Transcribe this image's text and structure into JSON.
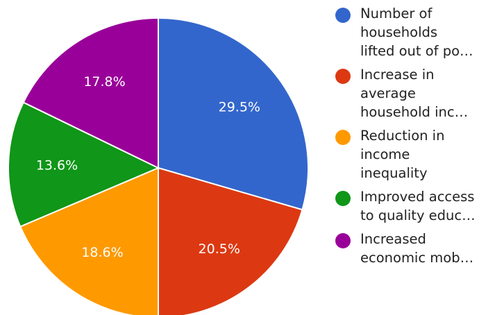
{
  "chart_data": {
    "type": "pie",
    "slices": [
      {
        "label": "Number of households lifted out of poverty",
        "value": 29.5,
        "display": "29.5%",
        "color": "#3366cc"
      },
      {
        "label": "Increase in average household income",
        "value": 20.5,
        "display": "20.5%",
        "color": "#dc3912"
      },
      {
        "label": "Reduction in income inequality",
        "value": 18.6,
        "display": "18.6%",
        "color": "#ff9900"
      },
      {
        "label": "Improved access to quality education",
        "value": 13.6,
        "display": "13.6%",
        "color": "#109618"
      },
      {
        "label": "Increased economic mobility",
        "value": 17.8,
        "display": "17.8%",
        "color": "#990099"
      }
    ],
    "legend": {
      "position": "right",
      "entries": [
        {
          "lines": [
            "Number of",
            "households",
            "lifted out of po…"
          ],
          "color": "#3366cc"
        },
        {
          "lines": [
            "Increase in",
            "average",
            "household inc…"
          ],
          "color": "#dc3912"
        },
        {
          "lines": [
            "Reduction in",
            "income",
            "inequality"
          ],
          "color": "#ff9900"
        },
        {
          "lines": [
            "Improved access",
            "to quality educ…"
          ],
          "color": "#109618"
        },
        {
          "lines": [
            "Increased",
            "economic mob…"
          ],
          "color": "#990099"
        }
      ]
    }
  }
}
